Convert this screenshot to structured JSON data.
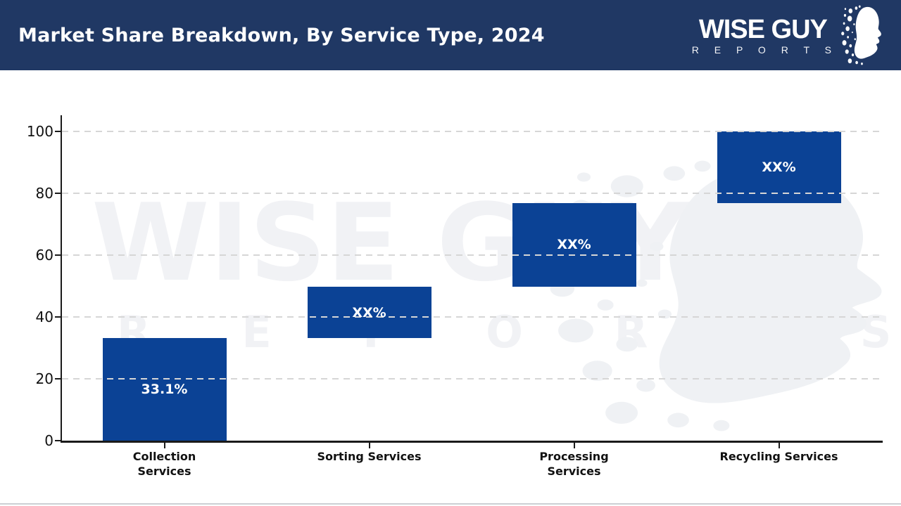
{
  "header": {
    "title": "Market Share Breakdown, By Service Type, 2024",
    "logo": {
      "line1": "WISE GUY",
      "line2": "R E P O R T S"
    }
  },
  "watermark": {
    "line1": "WISE GUY",
    "line2": "R E P O R T S"
  },
  "colors": {
    "header_bg": "#203864",
    "bar": "#0b4295",
    "bar_label_text": "#ffffff",
    "gridline": "#d6d6d6",
    "axis": "#1a1a1a",
    "watermark": "#f1f2f5"
  },
  "chart_data": {
    "type": "bar",
    "subtype": "waterfall",
    "title": "Market Share Breakdown, By Service Type, 2024",
    "xlabel": "",
    "ylabel": "",
    "ylim": [
      0,
      100
    ],
    "yticks": [
      0,
      20,
      40,
      60,
      80,
      100
    ],
    "grid": "horizontal dashed, drawn over bars",
    "legend": "none",
    "categories": [
      "Collection Services",
      "Sorting Services",
      "Processing Services",
      "Recycling Services"
    ],
    "values": [
      33.1,
      16.7,
      27.0,
      23.2
    ],
    "segments": [
      {
        "category": "Collection Services",
        "tick_lines": [
          "Collection",
          "Services"
        ],
        "base": 0,
        "top": 33.1,
        "label": "33.1%"
      },
      {
        "category": "Sorting Services",
        "tick_lines": [
          "Sorting Services"
        ],
        "base": 33.1,
        "top": 49.8,
        "label": "XX%"
      },
      {
        "category": "Processing Services",
        "tick_lines": [
          "Processing",
          "Services"
        ],
        "base": 49.8,
        "top": 76.8,
        "label": "XX%"
      },
      {
        "category": "Recycling Services",
        "tick_lines": [
          "Recycling Services"
        ],
        "base": 76.8,
        "top": 100,
        "label": "XX%"
      }
    ],
    "note": "Sample-report waterfall: only first segment value shown, others masked as XX%"
  }
}
